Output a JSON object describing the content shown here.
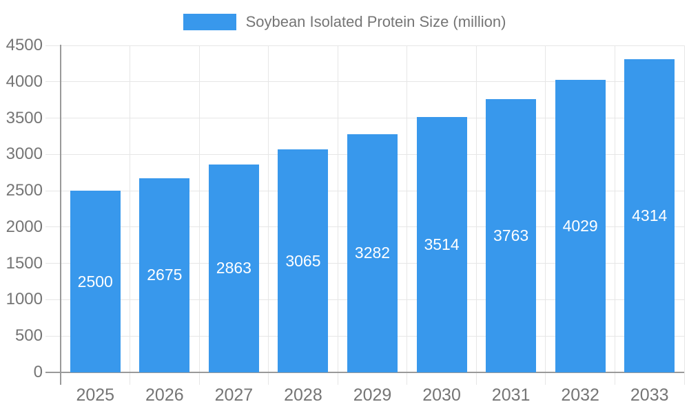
{
  "legend": {
    "label": "Soybean Isolated Protein Size (million)"
  },
  "chart_data": {
    "type": "bar",
    "title": "Soybean Isolated Protein Size (million)",
    "categories": [
      "2025",
      "2026",
      "2027",
      "2028",
      "2029",
      "2030",
      "2031",
      "2032",
      "2033"
    ],
    "values": [
      2500,
      2675,
      2863,
      3065,
      3282,
      3514,
      3763,
      4029,
      4314
    ],
    "xlabel": "",
    "ylabel": "",
    "ylim": [
      0,
      4500
    ],
    "ytick_step": 500,
    "grid": true,
    "legend_position": "top-center",
    "value_labels": "inside-center"
  },
  "colors": {
    "bar": "#3898ec",
    "grid": "#e6e6e6",
    "axis": "#999999",
    "text": "#757575",
    "value_label": "#ffffff",
    "background": "#ffffff"
  }
}
